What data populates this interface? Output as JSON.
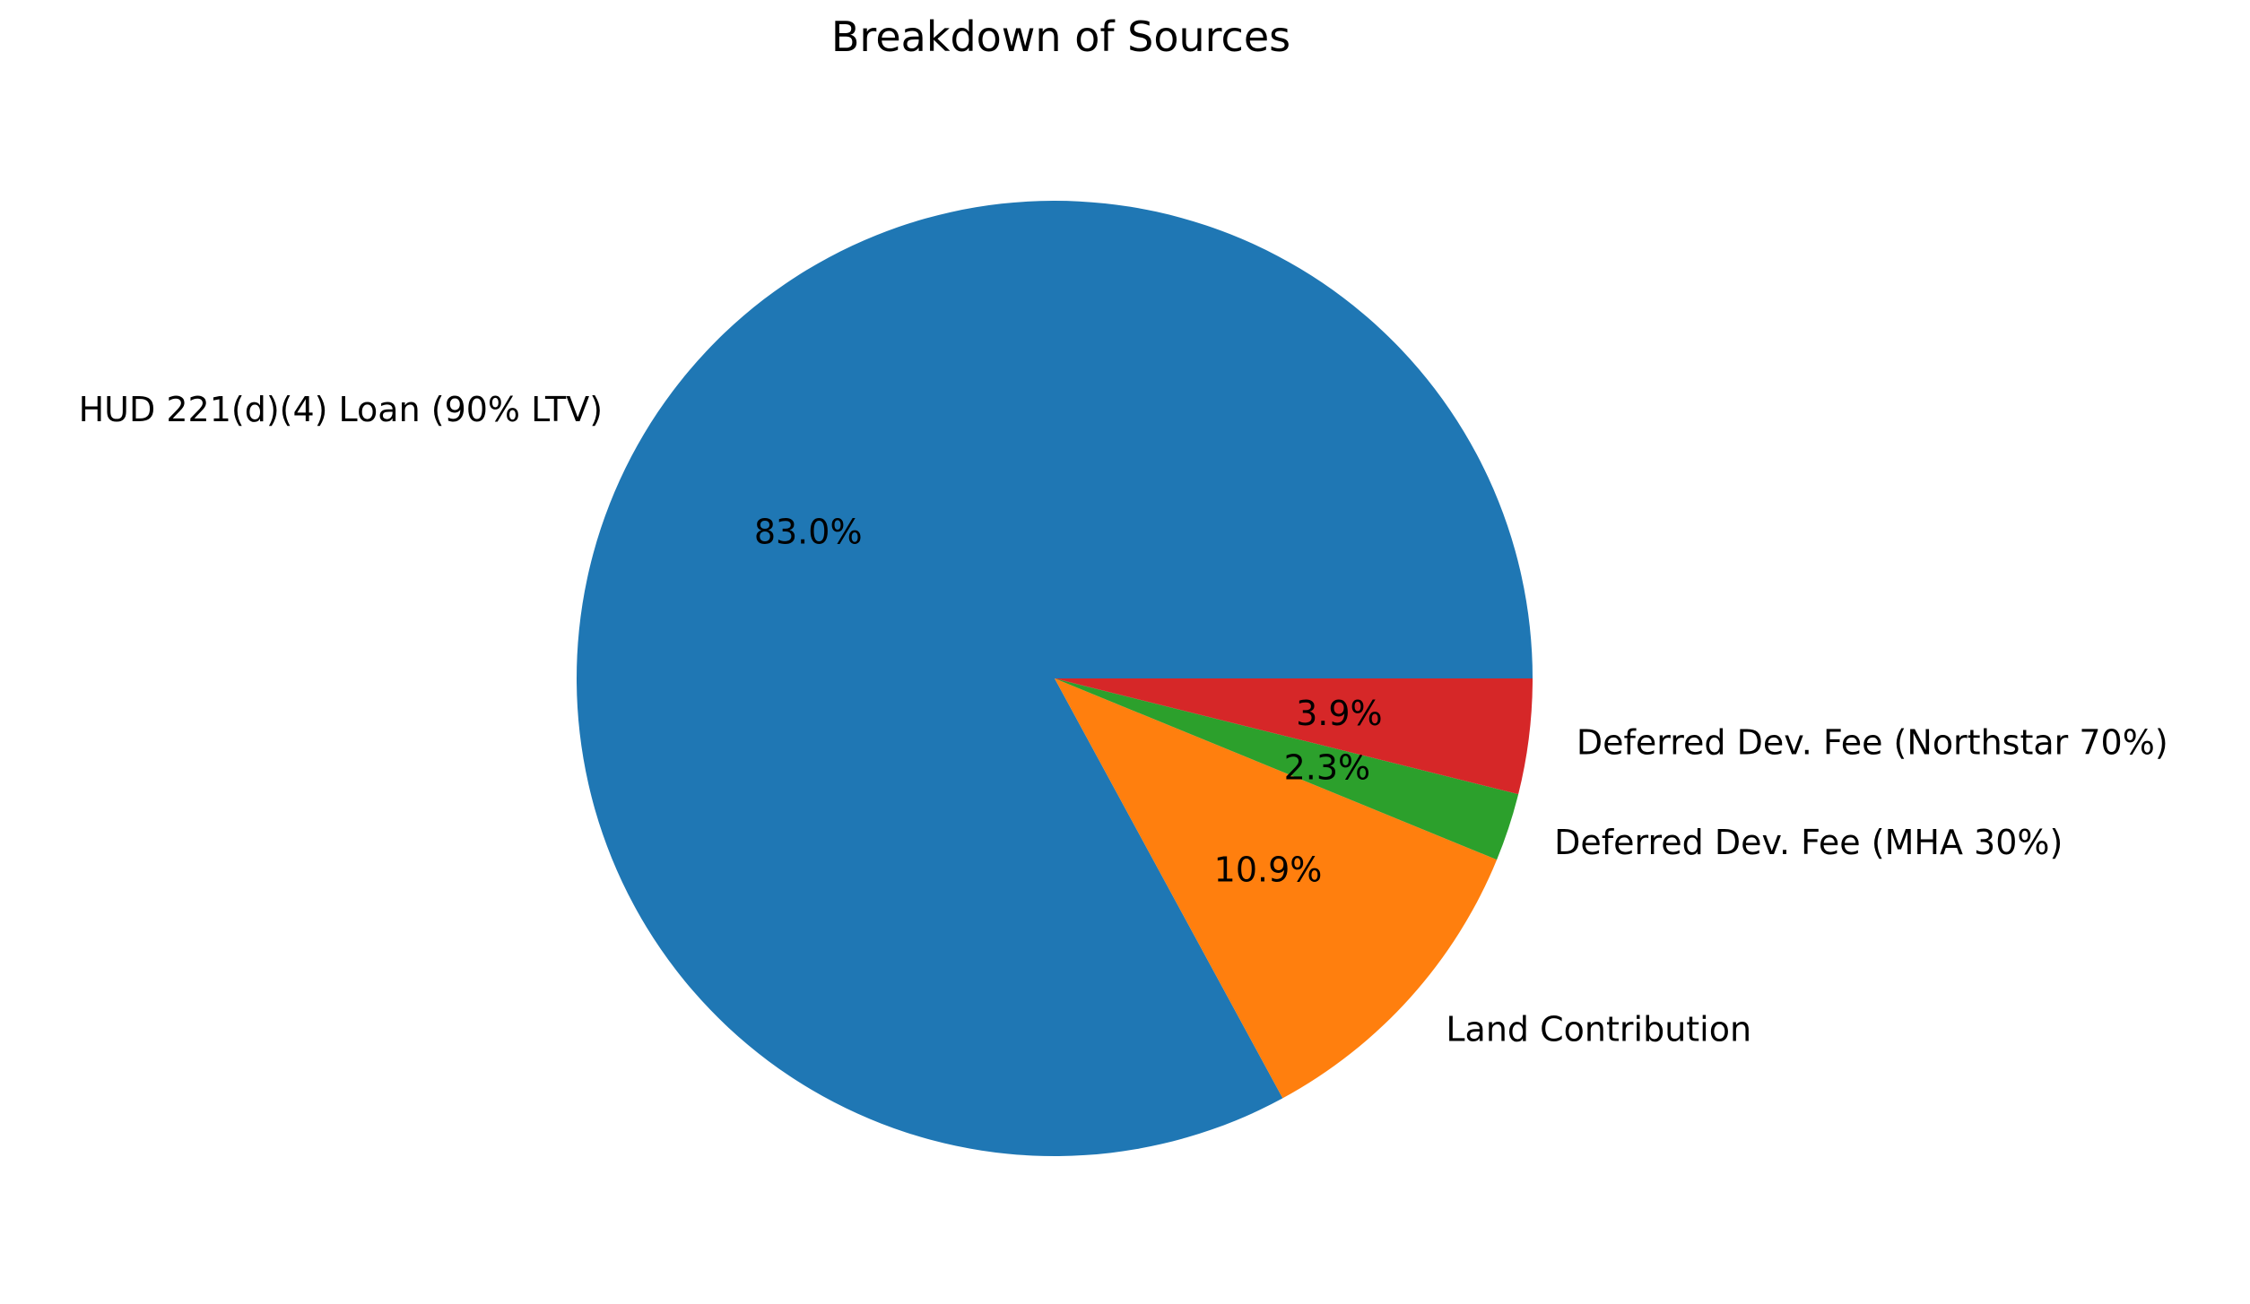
{
  "title": "Breakdown of Sources",
  "chart_data": {
    "type": "pie",
    "title": "Breakdown of Sources",
    "start_angle": 0,
    "direction": "counterclockwise",
    "legend": "none",
    "label_distance": 1.1,
    "pct_distance": 0.6,
    "background_color": "#ffffff",
    "text_color": "#000000",
    "slices": [
      {
        "label": "HUD 221(d)(4) Loan (90% LTV)",
        "value": 83.0,
        "pct_label": "83.0%",
        "color": "#1f77b4"
      },
      {
        "label": "Land Contribution",
        "value": 10.9,
        "pct_label": "10.9%",
        "color": "#ff7f0e"
      },
      {
        "label": "Deferred Dev. Fee (MHA 30%)",
        "value": 2.3,
        "pct_label": "2.3%",
        "color": "#2ca02c"
      },
      {
        "label": "Deferred Dev. Fee (Northstar 70%)",
        "value": 3.9,
        "pct_label": "3.9%",
        "color": "#d62728"
      }
    ]
  }
}
